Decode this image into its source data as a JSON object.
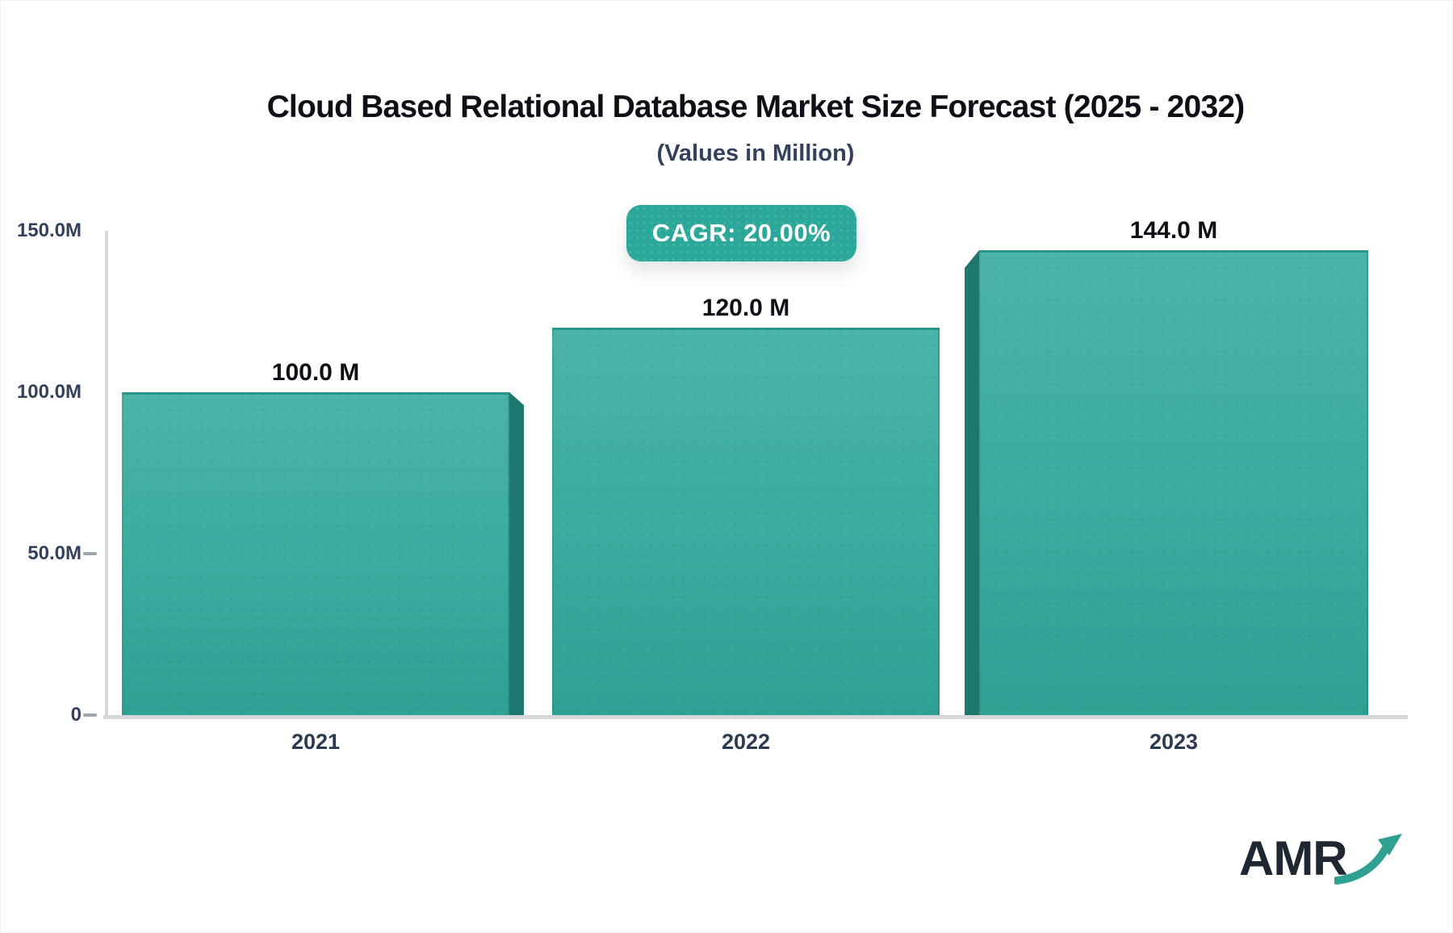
{
  "chart_data": {
    "type": "bar",
    "title": "Cloud Based Relational Database Market Size Forecast (2025 - 2032)",
    "subtitle": "(Values in Million)",
    "cagr_label": "CAGR: 20.00%",
    "cagr_value_pct": 20.0,
    "categories": [
      "2021",
      "2022",
      "2023"
    ],
    "values": [
      100.0,
      120.0,
      144.0
    ],
    "value_labels": [
      "100.0 M",
      "120.0 M",
      "144.0 M"
    ],
    "unit": "Million",
    "y_axis": {
      "ticks": [
        "150.0M",
        "100.0M",
        "50.0M",
        "0"
      ],
      "tick_values": [
        150,
        100,
        50,
        0
      ],
      "range": [
        0,
        150
      ]
    },
    "grid": false,
    "legend": "none",
    "colors": {
      "title_text": "#0d1117",
      "subtitle_text": "#33415c",
      "badge_bg": "#2ca89b",
      "badge_text": "#ffffff",
      "bar_top": "#4cb3a8",
      "bar_bottom": "#2fa093",
      "bar_top_stroke": "#2b948a",
      "bar_side_shade": "#1e776c",
      "axis_line": "#d5d7db",
      "tick": "#9ea4ab",
      "axis_label_text": "#33415c",
      "category_text": "#2b3a50",
      "value_label_text": "#0d1117"
    }
  },
  "branding": {
    "logo_text": "AMR",
    "arrow_icon": "growth-arrow-icon",
    "logo_text_color": "#1e2832",
    "arrow_color": "#2fa092"
  }
}
